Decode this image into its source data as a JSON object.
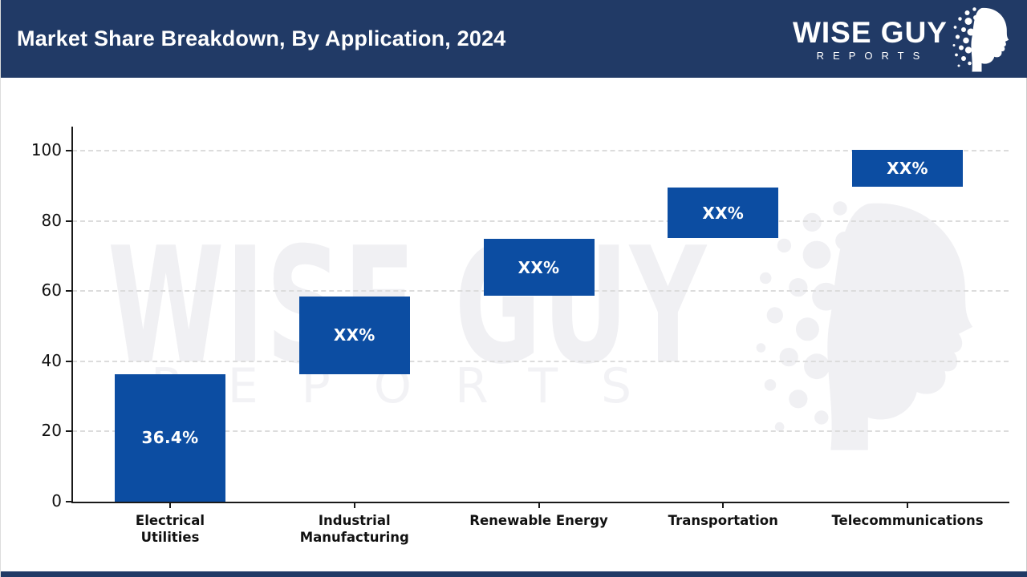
{
  "header": {
    "title": "Market Share Breakdown, By Application, 2024",
    "logo": {
      "name": "WISE GUY",
      "sub": "REPORTS"
    }
  },
  "watermark": {
    "line1": "WISE GUY",
    "line2": "REPORTS"
  },
  "footer": {
    "visible": true
  },
  "colors": {
    "header_bg": "#213a66",
    "footer_bg": "#213a66",
    "bar": "#0c4da2",
    "grid": "#dcdcdc",
    "axis": "#1a1a1a",
    "watermark": "#f0f0f3",
    "bar_label": "#ffffff"
  },
  "chart_data": {
    "type": "bar",
    "subtype": "waterfall",
    "title": "Market Share Breakdown, By Application, 2024",
    "unit": "percent",
    "categories": [
      "Electrical Utilities",
      "Industrial Manufacturing",
      "Renewable Energy",
      "Transportation",
      "Telecommunications"
    ],
    "category_lines": [
      [
        "Electrical",
        "Utilities"
      ],
      [
        "Industrial",
        "Manufacturing"
      ],
      [
        "Renewable Energy"
      ],
      [
        "Transportation"
      ],
      [
        "Telecommunications"
      ]
    ],
    "segments": [
      {
        "category": "Electrical Utilities",
        "start": 0,
        "end": 36.4,
        "label": "36.4%"
      },
      {
        "category": "Industrial Manufacturing",
        "start": 36.4,
        "end": 58.4,
        "label": "XX%"
      },
      {
        "category": "Renewable Energy",
        "start": 58.6,
        "end": 74.8,
        "label": "XX%"
      },
      {
        "category": "Transportation",
        "start": 75.0,
        "end": 89.5,
        "label": "XX%"
      },
      {
        "category": "Telecommunications",
        "start": 89.7,
        "end": 100.3,
        "label": "XX%"
      }
    ],
    "yticks": [
      0,
      20,
      40,
      60,
      80,
      100
    ],
    "ylim": [
      0,
      107
    ],
    "xlabel": "",
    "ylabel": "",
    "grid": {
      "axis": "y",
      "style": "dashed"
    },
    "legend": "none"
  }
}
